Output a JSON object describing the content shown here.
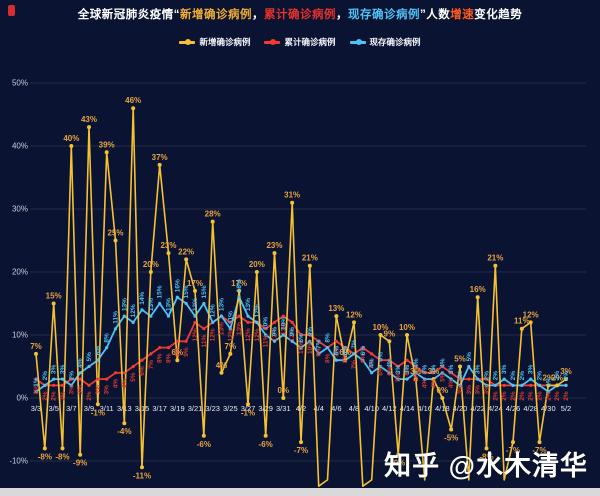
{
  "page": {
    "background": "#0a1432",
    "bottom_bar_color": "#d9d9d9",
    "grid_color": "rgba(255,255,255,0.10)",
    "axis_text_color": "#c9cede",
    "x_text_color": "#e8ebf5"
  },
  "title": {
    "full": "全球新冠肺炎疫情“新增确诊病例，累计确诊病例，现存确诊病例”人数增速变化趋势",
    "parts": [
      {
        "text": "全球新冠肺炎疫情“",
        "color": "#ffffff"
      },
      {
        "text": "新增确诊病例",
        "color": "#f0ad33"
      },
      {
        "text": "，",
        "color": "#ffffff"
      },
      {
        "text": "累计确诊病例",
        "color": "#e8312a"
      },
      {
        "text": "，",
        "color": "#ffffff"
      },
      {
        "text": "现存确诊病例",
        "color": "#4fc3f7"
      },
      {
        "text": "”人数",
        "color": "#ffffff"
      },
      {
        "text": "增速",
        "color": "#ff5a1f"
      },
      {
        "text": "变化趋势",
        "color": "#ffffff"
      }
    ]
  },
  "legend": {
    "items": [
      {
        "label": "新增确诊病例",
        "color": "#f5c132"
      },
      {
        "label": "累计确诊病例",
        "color": "#f03b30"
      },
      {
        "label": "现存确诊病例",
        "color": "#4fc3f7"
      }
    ]
  },
  "watermark": "知乎 @水木清华",
  "chart_data": {
    "type": "line",
    "title": "全球新冠肺炎疫情“新增确诊病例，累计确诊病例，现存确诊病例”人数增速变化趋势",
    "x": [
      "3/3",
      "3/4",
      "3/5",
      "3/6",
      "3/7",
      "3/8",
      "3/9",
      "3/10",
      "3/11",
      "3/12",
      "3/13",
      "3/14",
      "3/15",
      "3/16",
      "3/17",
      "3/18",
      "3/19",
      "3/20",
      "3/21",
      "3/22",
      "3/23",
      "3/24",
      "3/25",
      "3/26",
      "3/27",
      "3/28",
      "3/29",
      "3/30",
      "3/31",
      "4/1",
      "4/2",
      "4/3",
      "4/4",
      "4/5",
      "4/6",
      "4/7",
      "4/8",
      "4/9",
      "4/10",
      "4/11",
      "4/12",
      "4/13",
      "4/14",
      "4/15",
      "4/16",
      "4/17",
      "4/18",
      "4/19",
      "4/20",
      "4/21",
      "4/22",
      "4/23",
      "4/24",
      "4/25",
      "4/26",
      "4/27",
      "4/28",
      "4/29",
      "4/30",
      "5/1",
      "5/2"
    ],
    "x_tick_every": 2,
    "ylabel": "",
    "xlabel": "",
    "yticks": [
      "50%",
      "40%",
      "30%",
      "20%",
      "10%",
      "0%",
      "-10%"
    ],
    "ylim": [
      -14,
      52
    ],
    "grid": true,
    "legend_position": "top",
    "unit": "%",
    "series": [
      {
        "name": "新增确诊病例",
        "color": "#f5c132",
        "label_color": "#e8a33c",
        "label_style": "horizontal",
        "values": [
          7,
          -8,
          15,
          -8,
          40,
          -9,
          43,
          -1,
          39,
          25,
          -4,
          46,
          -11,
          20,
          37,
          23,
          6,
          22,
          17,
          -6,
          28,
          4,
          7,
          17,
          -1,
          20,
          -6,
          23,
          0,
          31,
          -7,
          21,
          -14,
          -13,
          13,
          6,
          12,
          -14,
          -13,
          10,
          9,
          -9,
          10,
          3,
          -13,
          3,
          0,
          -5,
          5,
          -13,
          16,
          -8,
          21,
          -13,
          -7,
          11,
          12,
          -7,
          2,
          2,
          3
        ]
      },
      {
        "name": "累计确诊病例",
        "color": "#f03b30",
        "label_color": "#d93a30",
        "label_style": "rotated-below",
        "values": [
          3,
          2,
          2,
          2,
          3,
          3,
          2,
          3,
          3,
          4,
          4,
          5,
          6,
          7,
          8,
          8,
          9,
          9,
          12,
          11,
          12,
          13,
          12,
          13,
          12,
          12,
          11,
          12,
          13,
          12,
          10,
          10,
          9,
          8,
          9,
          8,
          7,
          8,
          7,
          6,
          6,
          5,
          6,
          5,
          4,
          4,
          5,
          4,
          3,
          3,
          3,
          3,
          2,
          2,
          2,
          2,
          2,
          2,
          2,
          2,
          2
        ]
      },
      {
        "name": "现存确诊病例",
        "color": "#4fc3f7",
        "label_color": "#4fc3f7",
        "label_style": "rotated-above",
        "values": [
          1,
          2,
          3,
          3,
          2,
          4,
          5,
          6,
          8,
          11,
          13,
          12,
          14,
          13,
          15,
          13,
          16,
          15,
          13,
          15,
          12,
          13,
          11,
          16,
          13,
          12,
          10,
          9,
          10,
          9,
          8,
          9,
          7,
          8,
          6,
          6,
          7,
          6,
          4,
          5,
          4,
          3,
          3,
          4,
          3,
          3,
          4,
          3,
          2,
          5,
          3,
          2,
          2,
          3,
          2,
          2,
          3,
          2,
          1,
          2,
          2
        ]
      }
    ]
  }
}
